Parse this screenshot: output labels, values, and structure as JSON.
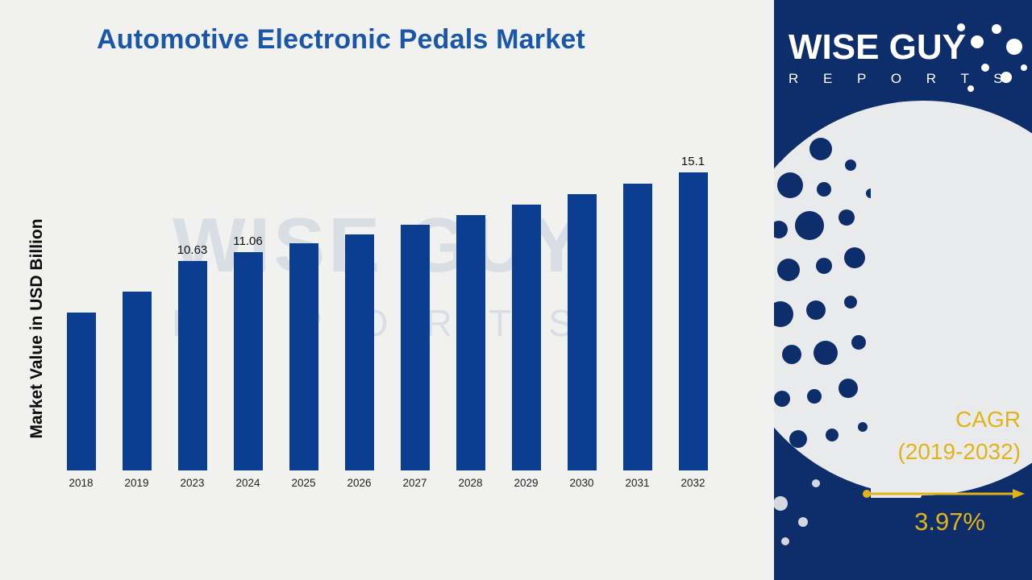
{
  "header": {
    "title": "Automotive Electronic Pedals Market"
  },
  "y_axis_label": "Market Value in USD Billion",
  "watermark": {
    "line1": "WISE GUY",
    "line2": "REPORTS"
  },
  "logo": {
    "line1": "WISE GUY",
    "line2": "R E P O R T S"
  },
  "cagr": {
    "label": "CAGR",
    "range": "(2019-2032)",
    "value": "3.97%"
  },
  "colors": {
    "bar": "#0b3d91",
    "panel": "#0d2e6b",
    "accent": "#e2b318",
    "title": "#1a57a8",
    "watermark": "#c7cfdd",
    "bg": "#f1f1ef"
  },
  "chart_data": {
    "type": "bar",
    "title": "Automotive Electronic Pedals Market",
    "xlabel": "",
    "ylabel": "Market Value in USD Billion",
    "categories": [
      "2018",
      "2019",
      "2023",
      "2024",
      "2025",
      "2026",
      "2027",
      "2028",
      "2029",
      "2030",
      "2031",
      "2032"
    ],
    "values": [
      8.0,
      9.05,
      10.63,
      11.06,
      11.5,
      11.95,
      12.45,
      12.95,
      13.45,
      14.0,
      14.55,
      15.1
    ],
    "data_labels": {
      "2023": "10.63",
      "2024": "11.06",
      "2032": "15.1"
    },
    "units": "USD Billion",
    "ylim": [
      0,
      16
    ],
    "grid": false,
    "legend": false,
    "bar_color": "#0b3d91"
  }
}
